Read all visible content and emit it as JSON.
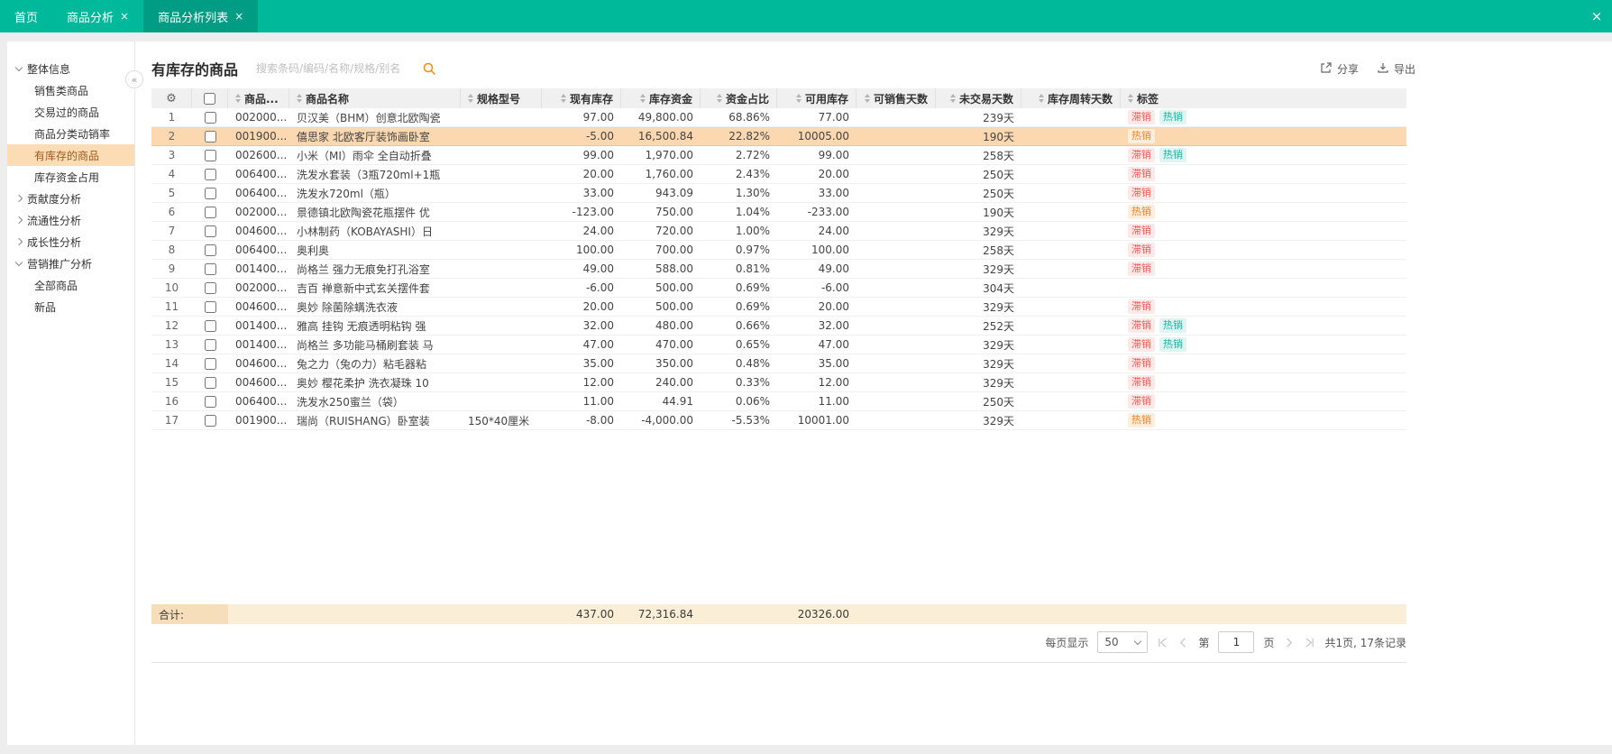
{
  "topbar": {
    "tabs": [
      {
        "label": "首页",
        "closable": false,
        "active": false
      },
      {
        "label": "商品分析",
        "closable": true,
        "active": false
      },
      {
        "label": "商品分析列表",
        "closable": true,
        "active": true
      }
    ],
    "close_icon": "×"
  },
  "sidebar": {
    "collapse_icon": "«",
    "items": [
      {
        "label": "整体信息",
        "level": 0,
        "expanded": true,
        "selected": false
      },
      {
        "label": "销售类商品",
        "level": 1,
        "selected": false
      },
      {
        "label": "交易过的商品",
        "level": 1,
        "selected": false
      },
      {
        "label": "商品分类动销率",
        "level": 1,
        "selected": false
      },
      {
        "label": "有库存的商品",
        "level": 1,
        "selected": true
      },
      {
        "label": "库存资金占用",
        "level": 1,
        "selected": false
      },
      {
        "label": "贡献度分析",
        "level": 0,
        "expanded": false,
        "selected": false
      },
      {
        "label": "流通性分析",
        "level": 0,
        "expanded": false,
        "selected": false
      },
      {
        "label": "成长性分析",
        "level": 0,
        "expanded": false,
        "selected": false
      },
      {
        "label": "营销推广分析",
        "level": 0,
        "expanded": true,
        "selected": false
      },
      {
        "label": "全部商品",
        "level": 1,
        "selected": false
      },
      {
        "label": "新品",
        "level": 1,
        "selected": false
      }
    ]
  },
  "header": {
    "title": "有库存的商品",
    "search_placeholder": "搜索条码/编码/名称/规格/别名",
    "share_label": "分享",
    "export_label": "导出"
  },
  "colors": {
    "topbar": "#00b89a",
    "topbar_active_tab": "#009c84",
    "sidebar_selected_bg": "#fcdcb4",
    "row_highlight_bg": "#fbd8b0",
    "summary_bg": "#fbeed7",
    "search_icon": "#ff8a00"
  },
  "tags_legend": {
    "stagnant": {
      "label": "滞销",
      "color": "#f05654",
      "bg": "#fdeae8"
    },
    "hot": {
      "label": "热销",
      "color": "#13b5a5",
      "bg": "#e0f5f1"
    },
    "hot_orange": {
      "label": "热销",
      "color": "#f5821f",
      "bg": "#fdeedd"
    }
  },
  "table": {
    "columns": [
      {
        "key": "num",
        "label": "",
        "header": "gear",
        "align": "center"
      },
      {
        "key": "check",
        "label": "",
        "header": "checkbox",
        "align": "center"
      },
      {
        "key": "code",
        "label": "商品...",
        "sortable": true,
        "align": "left"
      },
      {
        "key": "name",
        "label": "商品名称",
        "sortable": true,
        "align": "left"
      },
      {
        "key": "spec",
        "label": "规格型号",
        "sortable": true,
        "align": "left"
      },
      {
        "key": "stock",
        "label": "现有库存",
        "sortable": true,
        "align": "right"
      },
      {
        "key": "funds",
        "label": "库存资金",
        "sortable": true,
        "align": "right"
      },
      {
        "key": "ratio",
        "label": "资金占比",
        "sortable": true,
        "align": "right"
      },
      {
        "key": "available",
        "label": "可用库存",
        "sortable": true,
        "align": "right"
      },
      {
        "key": "sellable",
        "label": "可销售天数",
        "sortable": true,
        "align": "right"
      },
      {
        "key": "notrade",
        "label": "未交易天数",
        "sortable": true,
        "align": "right"
      },
      {
        "key": "turnover",
        "label": "库存周转天数",
        "sortable": true,
        "align": "right"
      },
      {
        "key": "tags",
        "label": "标签",
        "sortable": true,
        "align": "left"
      }
    ],
    "rows": [
      {
        "num": "1",
        "code": "002000...",
        "name": "贝汉美（BHM）创意北欧陶瓷",
        "spec": "",
        "stock": "97.00",
        "funds": "49,800.00",
        "ratio": "68.86%",
        "available": "77.00",
        "sellable": "",
        "notrade": "239天",
        "turnover": "",
        "tags": [
          "stagnant",
          "hot"
        ],
        "highlight": false
      },
      {
        "num": "2",
        "code": "001900...",
        "name": "僖思家 北欧客厅装饰画卧室",
        "spec": "",
        "stock": "-5.00",
        "funds": "16,500.84",
        "ratio": "22.82%",
        "available": "10005.00",
        "sellable": "",
        "notrade": "190天",
        "turnover": "",
        "tags": [
          "hot_orange"
        ],
        "highlight": true
      },
      {
        "num": "3",
        "code": "002600...",
        "name": "小米（MI）雨伞 全自动折叠",
        "spec": "",
        "stock": "99.00",
        "funds": "1,970.00",
        "ratio": "2.72%",
        "available": "99.00",
        "sellable": "",
        "notrade": "258天",
        "turnover": "",
        "tags": [
          "stagnant",
          "hot"
        ],
        "highlight": false
      },
      {
        "num": "4",
        "code": "006400...",
        "name": "洗发水套装（3瓶720ml+1瓶",
        "spec": "",
        "stock": "20.00",
        "funds": "1,760.00",
        "ratio": "2.43%",
        "available": "20.00",
        "sellable": "",
        "notrade": "250天",
        "turnover": "",
        "tags": [
          "stagnant"
        ],
        "highlight": false
      },
      {
        "num": "5",
        "code": "006400...",
        "name": "洗发水720ml（瓶）",
        "spec": "",
        "stock": "33.00",
        "funds": "943.09",
        "ratio": "1.30%",
        "available": "33.00",
        "sellable": "",
        "notrade": "250天",
        "turnover": "",
        "tags": [
          "stagnant"
        ],
        "highlight": false
      },
      {
        "num": "6",
        "code": "002000...",
        "name": "景德镇北欧陶瓷花瓶摆件 优",
        "spec": "",
        "stock": "-123.00",
        "funds": "750.00",
        "ratio": "1.04%",
        "available": "-233.00",
        "sellable": "",
        "notrade": "190天",
        "turnover": "",
        "tags": [
          "hot_orange"
        ],
        "highlight": false
      },
      {
        "num": "7",
        "code": "004600...",
        "name": "小林制药（KOBAYASHI）日",
        "spec": "",
        "stock": "24.00",
        "funds": "720.00",
        "ratio": "1.00%",
        "available": "24.00",
        "sellable": "",
        "notrade": "329天",
        "turnover": "",
        "tags": [
          "stagnant"
        ],
        "highlight": false
      },
      {
        "num": "8",
        "code": "006400...",
        "name": "奥利奥",
        "spec": "",
        "stock": "100.00",
        "funds": "700.00",
        "ratio": "0.97%",
        "available": "100.00",
        "sellable": "",
        "notrade": "258天",
        "turnover": "",
        "tags": [
          "stagnant"
        ],
        "highlight": false
      },
      {
        "num": "9",
        "code": "001400...",
        "name": "尚格兰 强力无痕免打孔浴室",
        "spec": "",
        "stock": "49.00",
        "funds": "588.00",
        "ratio": "0.81%",
        "available": "49.00",
        "sellable": "",
        "notrade": "329天",
        "turnover": "",
        "tags": [
          "stagnant"
        ],
        "highlight": false
      },
      {
        "num": "10",
        "code": "002000...",
        "name": "吉百 禅意新中式玄关摆件套",
        "spec": "",
        "stock": "-6.00",
        "funds": "500.00",
        "ratio": "0.69%",
        "available": "-6.00",
        "sellable": "",
        "notrade": "304天",
        "turnover": "",
        "tags": [],
        "highlight": false
      },
      {
        "num": "11",
        "code": "004600...",
        "name": "奥妙 除菌除螨洗衣液",
        "spec": "",
        "stock": "20.00",
        "funds": "500.00",
        "ratio": "0.69%",
        "available": "20.00",
        "sellable": "",
        "notrade": "329天",
        "turnover": "",
        "tags": [
          "stagnant"
        ],
        "highlight": false
      },
      {
        "num": "12",
        "code": "001400...",
        "name": "雅高 挂钩 无痕透明粘钩 强",
        "spec": "",
        "stock": "32.00",
        "funds": "480.00",
        "ratio": "0.66%",
        "available": "32.00",
        "sellable": "",
        "notrade": "252天",
        "turnover": "",
        "tags": [
          "stagnant",
          "hot"
        ],
        "highlight": false
      },
      {
        "num": "13",
        "code": "001400...",
        "name": "尚格兰 多功能马桶刷套装 马",
        "spec": "",
        "stock": "47.00",
        "funds": "470.00",
        "ratio": "0.65%",
        "available": "47.00",
        "sellable": "",
        "notrade": "329天",
        "turnover": "",
        "tags": [
          "stagnant",
          "hot"
        ],
        "highlight": false
      },
      {
        "num": "14",
        "code": "004600...",
        "name": "兔之力（兔の力）粘毛器粘",
        "spec": "",
        "stock": "35.00",
        "funds": "350.00",
        "ratio": "0.48%",
        "available": "35.00",
        "sellable": "",
        "notrade": "329天",
        "turnover": "",
        "tags": [
          "stagnant"
        ],
        "highlight": false
      },
      {
        "num": "15",
        "code": "004600...",
        "name": "奥妙 樱花柔护 洗衣凝珠 10",
        "spec": "",
        "stock": "12.00",
        "funds": "240.00",
        "ratio": "0.33%",
        "available": "12.00",
        "sellable": "",
        "notrade": "329天",
        "turnover": "",
        "tags": [
          "stagnant"
        ],
        "highlight": false
      },
      {
        "num": "16",
        "code": "006400...",
        "name": "洗发水250蜜兰（袋）",
        "spec": "",
        "stock": "11.00",
        "funds": "44.91",
        "ratio": "0.06%",
        "available": "11.00",
        "sellable": "",
        "notrade": "250天",
        "turnover": "",
        "tags": [
          "stagnant"
        ],
        "highlight": false
      },
      {
        "num": "17",
        "code": "001900...",
        "name": "瑞尚（RUISHANG）卧室装",
        "spec": "150*40厘米",
        "stock": "-8.00",
        "funds": "-4,000.00",
        "ratio": "-5.53%",
        "available": "10001.00",
        "sellable": "",
        "notrade": "329天",
        "turnover": "",
        "tags": [
          "hot_orange"
        ],
        "highlight": false
      }
    ],
    "summary": {
      "label": "合计:",
      "stock": "437.00",
      "funds": "72,316.84",
      "available": "20326.00"
    }
  },
  "pagination": {
    "per_page_label": "每页显示",
    "per_page_value": "50",
    "page_prefix": "第",
    "page_number": "1",
    "page_suffix": "页",
    "total_text": "共1页, 17条记录"
  }
}
